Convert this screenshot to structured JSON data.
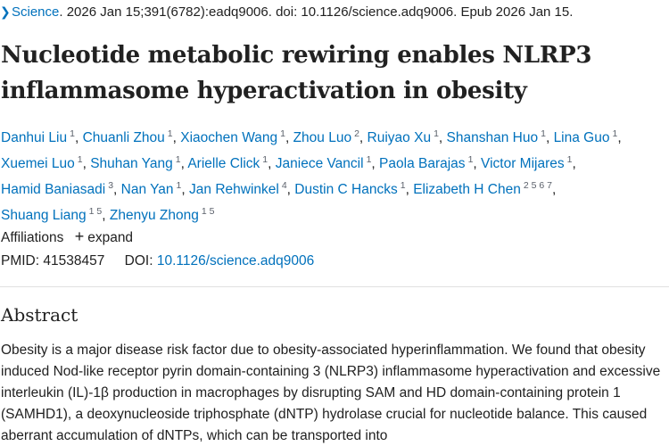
{
  "citation": {
    "chevron_icon": "chevron-right-icon",
    "journal": "Science",
    "details": ". 2026 Jan 15;391(6782):eadq9006. doi: 10.1126/science.adq9006. Epub 2026 Jan 15."
  },
  "article": {
    "title": "Nucleotide metabolic rewiring enables NLRP3 inflammasome hyperactivation in obesity"
  },
  "authors": [
    {
      "name": "Danhui Liu",
      "affils": "1"
    },
    {
      "name": "Chuanli Zhou",
      "affils": "1"
    },
    {
      "name": "Xiaochen Wang",
      "affils": "1"
    },
    {
      "name": "Zhou Luo",
      "affils": "2"
    },
    {
      "name": "Ruiyao Xu",
      "affils": "1"
    },
    {
      "name": "Shanshan Huo",
      "affils": "1"
    },
    {
      "name": "Lina Guo",
      "affils": "1"
    },
    {
      "name": "Xuemei Luo",
      "affils": "1"
    },
    {
      "name": "Shuhan Yang",
      "affils": "1"
    },
    {
      "name": "Arielle Click",
      "affils": "1"
    },
    {
      "name": "Janiece Vancil",
      "affils": "1"
    },
    {
      "name": "Paola Barajas",
      "affils": "1"
    },
    {
      "name": "Victor Mijares",
      "affils": "1"
    },
    {
      "name": "Hamid Baniasadi",
      "affils": "3"
    },
    {
      "name": "Nan Yan",
      "affils": "1"
    },
    {
      "name": "Jan Rehwinkel",
      "affils": "4"
    },
    {
      "name": "Dustin C Hancks",
      "affils": "1"
    },
    {
      "name": "Elizabeth H Chen",
      "affils": "2 5 6 7"
    },
    {
      "name": "Shuang Liang",
      "affils": "1 5"
    },
    {
      "name": "Zhenyu Zhong",
      "affils": "1 5"
    }
  ],
  "affiliations": {
    "label": "Affiliations",
    "expand_icon": "plus-icon",
    "expand_label": "expand"
  },
  "identifiers": {
    "pmid_label": "PMID:",
    "pmid": "41538457",
    "doi_label": "DOI:",
    "doi": "10.1126/science.adq9006"
  },
  "abstract": {
    "heading": "Abstract",
    "text": "Obesity is a major disease risk factor due to obesity-associated hyperinflammation. We found that obesity induced Nod-like receptor pyrin domain-containing 3 (NLRP3) inflammasome hyperactivation and excessive interleukin (IL)-1β production in macrophages by disrupting SAM and HD domain-containing protein 1 (SAMHD1), a deoxynucleoside triphosphate (dNTP) hydrolase crucial for nucleotide balance. This caused aberrant accumulation of dNTPs, which can be transported into"
  }
}
